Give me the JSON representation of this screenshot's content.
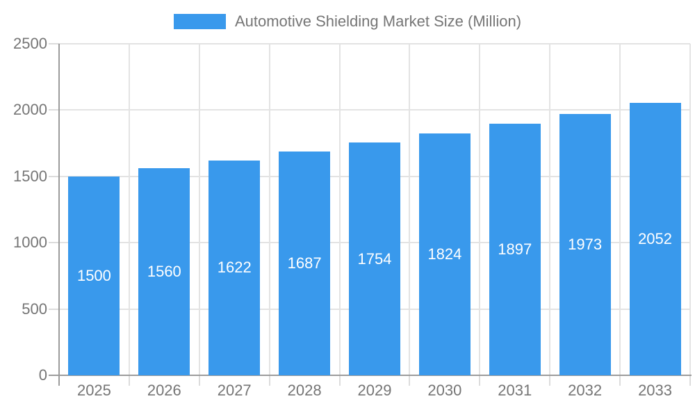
{
  "legend": {
    "label": "Automotive Shielding Market Size (Million)"
  },
  "colors": {
    "bar": "#3999EC",
    "bar_label": "#FFFFFF",
    "grid": "#E3E3E3",
    "tick": "#DCDCDC",
    "axis": "#9B9B9B",
    "text": "#757575"
  },
  "chart_data": {
    "type": "bar",
    "title": "Automotive Shielding Market Size (Million)",
    "categories": [
      "2025",
      "2026",
      "2027",
      "2028",
      "2029",
      "2030",
      "2031",
      "2032",
      "2033"
    ],
    "values": [
      1500,
      1560,
      1622,
      1687,
      1754,
      1824,
      1897,
      1973,
      2052
    ],
    "xlabel": "",
    "ylabel": "",
    "ylim": [
      0,
      2500
    ],
    "yticks": [
      0,
      500,
      1000,
      1500,
      2000,
      2500
    ],
    "grid": true,
    "legend_position": "top",
    "value_labels": "inside-center"
  }
}
